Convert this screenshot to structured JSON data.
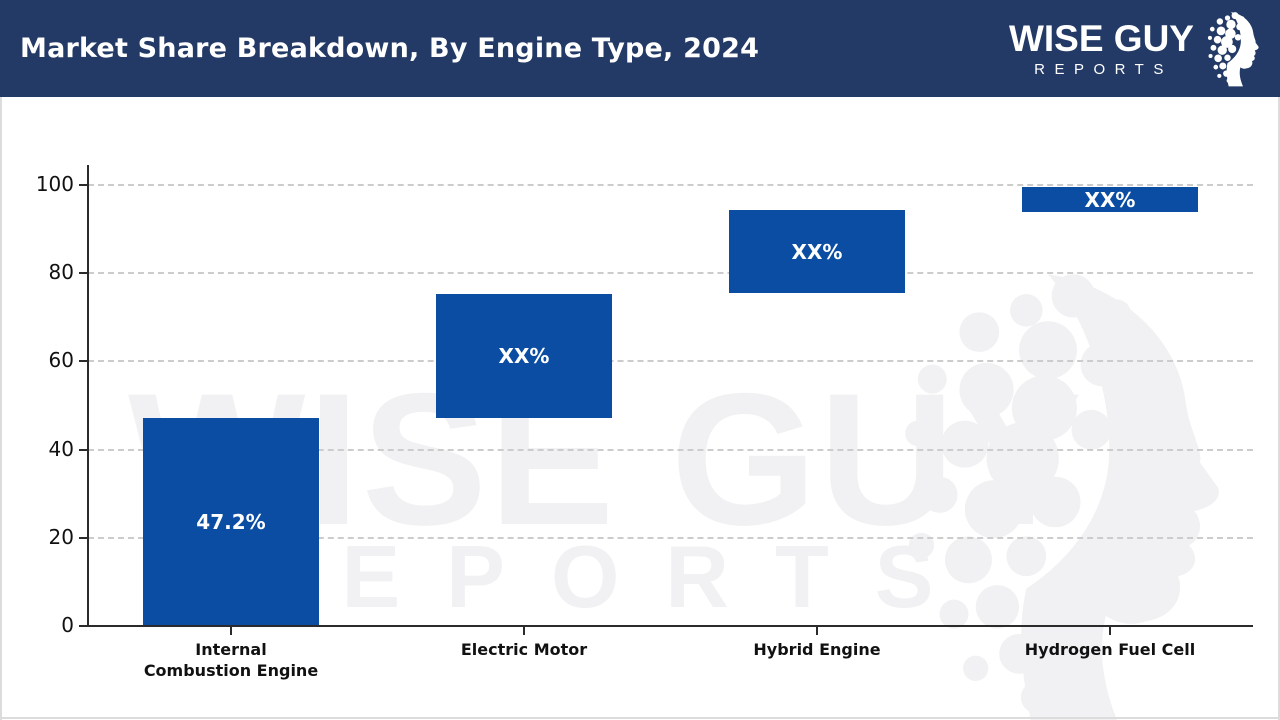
{
  "header": {
    "title": "Market Share Breakdown, By Engine Type, 2024",
    "brand": {
      "name": "WISE GUY",
      "sub": "REPORTS"
    }
  },
  "watermark": {
    "line1": "WISE GUY",
    "line2": "REPORTS"
  },
  "chart_data": {
    "type": "bar",
    "subtype": "waterfall",
    "title": "Market Share Breakdown, By Engine Type, 2024",
    "categories": [
      "Internal Combustion Engine",
      "Electric Motor",
      "Hybrid Engine",
      "Hydrogen Fuel Cell"
    ],
    "category_label_lines": [
      [
        "Internal",
        "Combustion Engine"
      ],
      [
        "Electric Motor"
      ],
      [
        "Hybrid Engine"
      ],
      [
        "Hydrogen Fuel Cell"
      ]
    ],
    "segments": [
      {
        "category": "Internal Combustion Engine",
        "start": 0,
        "end": 47.2,
        "label": "47.2%"
      },
      {
        "category": "Electric Motor",
        "start": 47.2,
        "end": 75.3,
        "label": "XX%"
      },
      {
        "category": "Hybrid Engine",
        "start": 75.4,
        "end": 94.2,
        "label": "XX%"
      },
      {
        "category": "Hydrogen Fuel Cell",
        "start": 93.9,
        "end": 99.4,
        "label": "XX%"
      }
    ],
    "yticks": [
      0,
      20,
      40,
      60,
      80,
      100
    ],
    "ylim": [
      0,
      104.5
    ],
    "xlabel": "",
    "ylabel": "",
    "grid": "horizontal-dashed",
    "legend": "none",
    "bar_color": "#0b4da2",
    "bar_label_color": "#ffffff"
  },
  "colors": {
    "header_bg": "#233a66",
    "bar": "#0b4da2",
    "grid": "#cccccc",
    "axis": "#2b2b2b",
    "watermark": "#f1f1f3",
    "frame_line": "#dcdcdc"
  }
}
